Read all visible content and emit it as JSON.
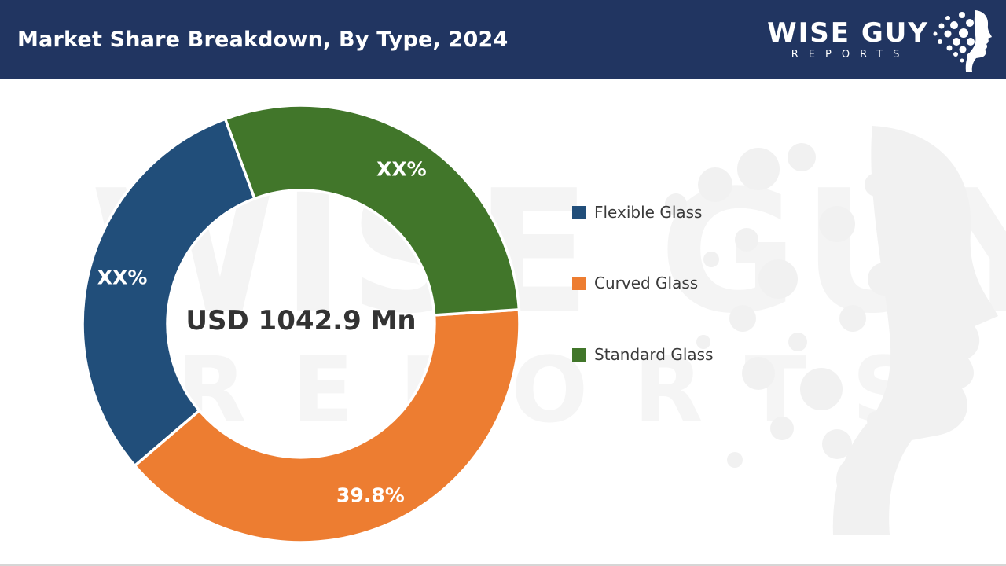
{
  "header": {
    "title": "Market Share Breakdown, By Type, 2024",
    "bg_color": "#213561",
    "logo": {
      "line1": "WISE GUY",
      "line2": "REPORTS"
    }
  },
  "chart_data": {
    "type": "pie",
    "donut": true,
    "title": "Market Share Breakdown, By Type, 2024",
    "center_label": "USD 1042.9 Mn",
    "total_value": "USD 1042.9 Mn",
    "legend_position": "right",
    "series": [
      {
        "name": "Flexible Glass",
        "label": "XX%",
        "value_pct": 30.6,
        "color": "#214E7A"
      },
      {
        "name": "Curved Glass",
        "label": "39.8%",
        "value_pct": 39.8,
        "color": "#ED7D31"
      },
      {
        "name": "Standard Glass",
        "label": "XX%",
        "value_pct": 29.6,
        "color": "#41762A"
      }
    ]
  },
  "watermark": {
    "line1": "WISE GUY",
    "line2": "REPORTS"
  },
  "colors": {
    "header_bg": "#213561",
    "center_text": "#333333",
    "legend_text": "#3a3a3a",
    "slice_label_text": "#ffffff",
    "watermark": "#f4f4f4",
    "bottom_rule": "#d6d6d6"
  }
}
